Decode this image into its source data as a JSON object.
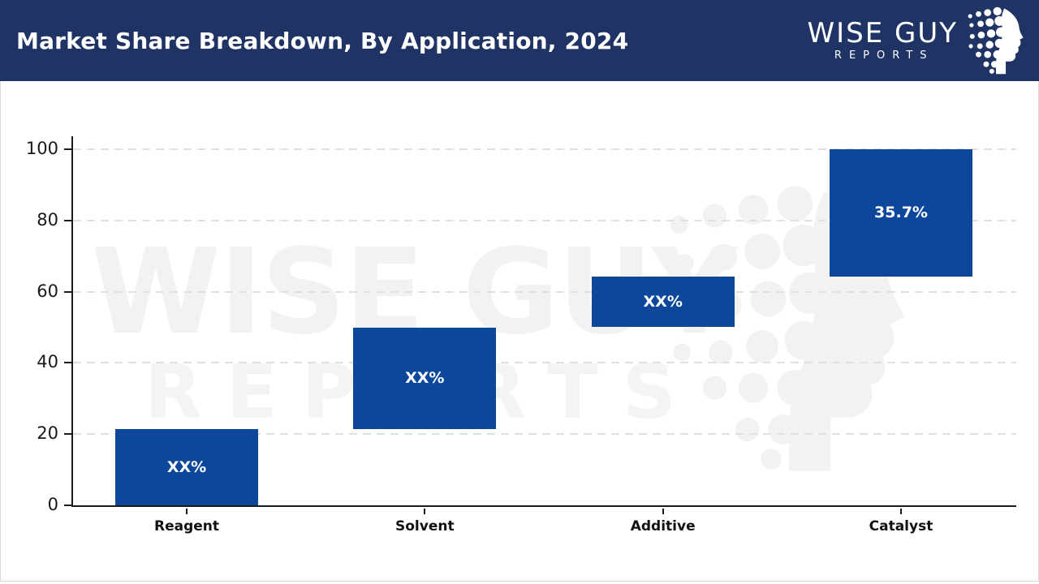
{
  "header": {
    "title": "Market Share Breakdown, By Application, 2024",
    "logo": {
      "line1": "WISE GUY",
      "line2": "REPORTS"
    }
  },
  "watermark": {
    "line1": "WISE GUY",
    "line2": "REPORTS"
  },
  "chart_data": {
    "type": "bar",
    "subtype": "floating-waterfall",
    "title": "Market Share Breakdown, By Application, 2024",
    "categories": [
      "Reagent",
      "Solvent",
      "Additive",
      "Catalyst"
    ],
    "series": [
      {
        "name": "Market Share (%)",
        "segments": [
          {
            "category": "Reagent",
            "start": 0,
            "end": 21.4,
            "label": "XX%"
          },
          {
            "category": "Solvent",
            "start": 21.4,
            "end": 50.0,
            "label": "XX%"
          },
          {
            "category": "Additive",
            "start": 50.0,
            "end": 64.3,
            "label": "XX%"
          },
          {
            "category": "Catalyst",
            "start": 64.3,
            "end": 100.0,
            "label": "35.7%"
          }
        ]
      }
    ],
    "ylim": [
      0,
      100
    ],
    "yticks": [
      0,
      20,
      40,
      60,
      80,
      100
    ],
    "grid": "horizontal-dashed",
    "legend": "none",
    "colors": {
      "bar": "#0c479c",
      "bar_label": "#ffffff",
      "header_bg": "#1f3464",
      "grid": "#e0e0e0",
      "axis": "#1a1a1a",
      "watermark": "#f2f2f2"
    }
  }
}
